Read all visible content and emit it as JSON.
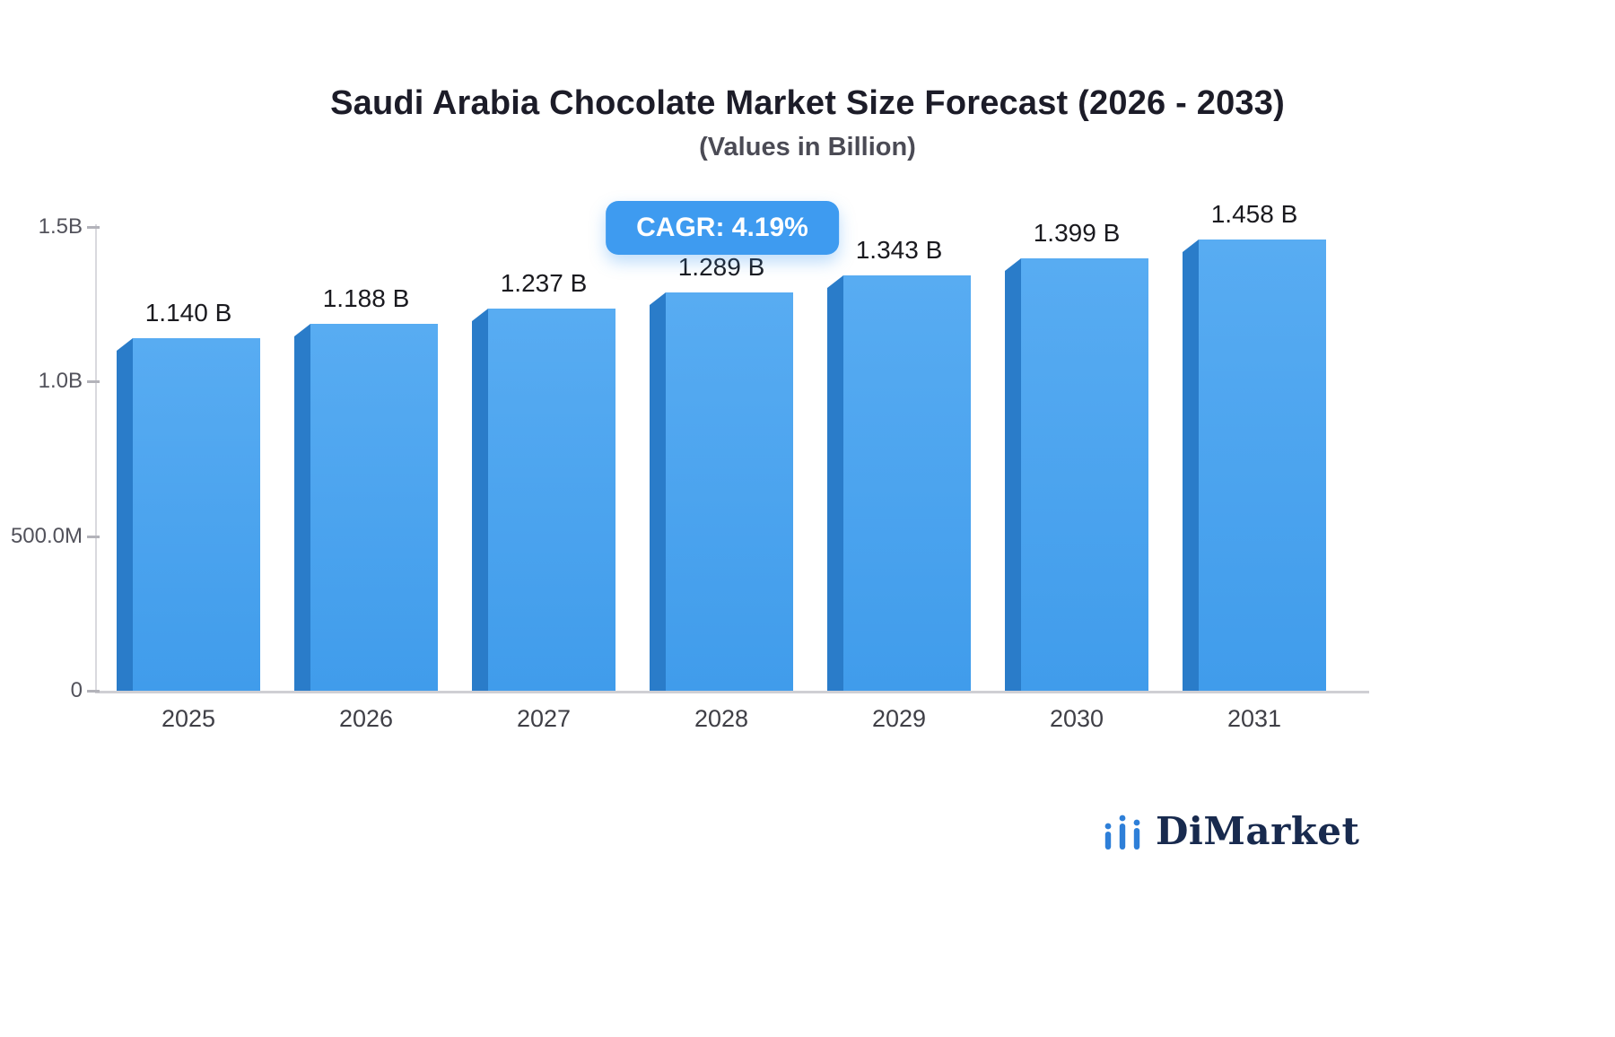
{
  "header": {
    "title": "Saudi Arabia Chocolate Market Size Forecast (2026 - 2033)",
    "subtitle": "(Values in Billion)",
    "cagr_label": "CAGR: 4.19%"
  },
  "chart_data": {
    "type": "bar",
    "title": "Saudi Arabia Chocolate Market Size Forecast (2026 - 2033)",
    "subtitle": "(Values in Billion)",
    "unit": "Billion",
    "cagr": "4.19%",
    "categories": [
      "2025",
      "2026",
      "2027",
      "2028",
      "2029",
      "2030",
      "2031"
    ],
    "values": [
      1.14,
      1.188,
      1.237,
      1.289,
      1.343,
      1.399,
      1.458
    ],
    "value_labels": [
      "1.140 B",
      "1.188 B",
      "1.237 B",
      "1.289 B",
      "1.343 B",
      "1.399 B",
      "1.458 B"
    ],
    "ylim": [
      0,
      1.5
    ],
    "yticks": [
      {
        "value": 1.5,
        "label": "1.5B"
      },
      {
        "value": 1.0,
        "label": "1.0B"
      },
      {
        "value": 0.5,
        "label": "500.0M"
      },
      {
        "value": 0,
        "label": "0"
      }
    ],
    "grid": false,
    "legend": false,
    "colors": {
      "bar_gradient_top": "#58acf2",
      "bar_gradient_bottom": "#409ceb",
      "bar_side": "#2a7cc9",
      "badge_background": "#3e9bf0",
      "badge_text": "#ffffff",
      "axis": "#cfcfd4",
      "title_text": "#1c1c28"
    }
  },
  "branding": {
    "logo_text": "DiMarket",
    "logo_icon": "bar-chart-icon",
    "logo_color": "#2e7fd8",
    "logo_text_color": "#182a4e"
  }
}
